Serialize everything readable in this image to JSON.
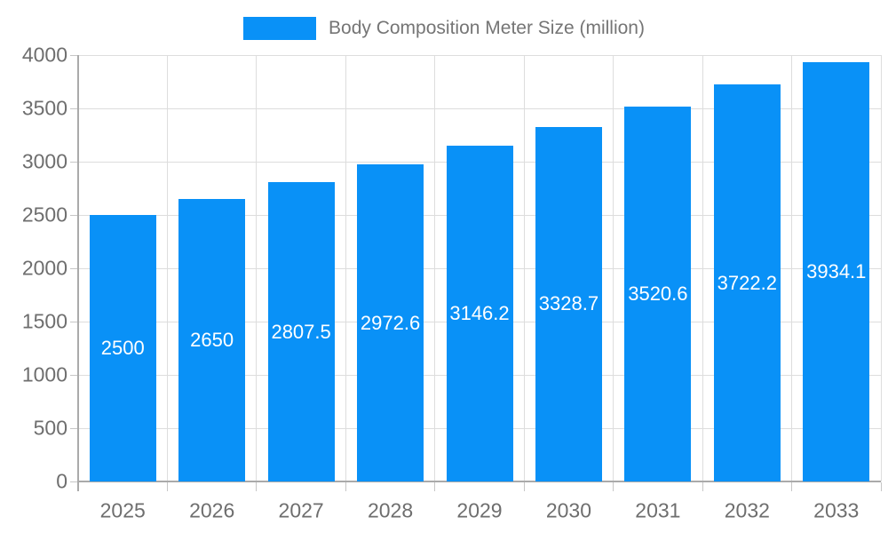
{
  "chart_data": {
    "type": "bar",
    "title": "Body Composition Meter Size (million)",
    "categories": [
      "2025",
      "2026",
      "2027",
      "2028",
      "2029",
      "2030",
      "2031",
      "2032",
      "2033"
    ],
    "values": [
      2500,
      2650,
      2807.5,
      2972.6,
      3146.2,
      3328.7,
      3520.6,
      3722.2,
      3934.1
    ],
    "value_labels": [
      "2500",
      "2650",
      "2807.5",
      "2972.6",
      "3146.2",
      "3328.7",
      "3520.6",
      "3722.2",
      "3934.1"
    ],
    "yticks": [
      0,
      500,
      1000,
      1500,
      2000,
      2500,
      3000,
      3500,
      4000
    ],
    "ylim": [
      0,
      4000
    ],
    "xlabel": "",
    "ylabel": "",
    "grid": true,
    "legend_position": "top",
    "colors": {
      "bar": "#0991f7",
      "grid": "#dddddd",
      "tick": "#c6c6c6",
      "axis": "#aaaaaa",
      "axis_text": "#6e6e6e",
      "legend_text": "#757575",
      "bar_label_text": "#ffffff",
      "background": "#ffffff"
    }
  }
}
